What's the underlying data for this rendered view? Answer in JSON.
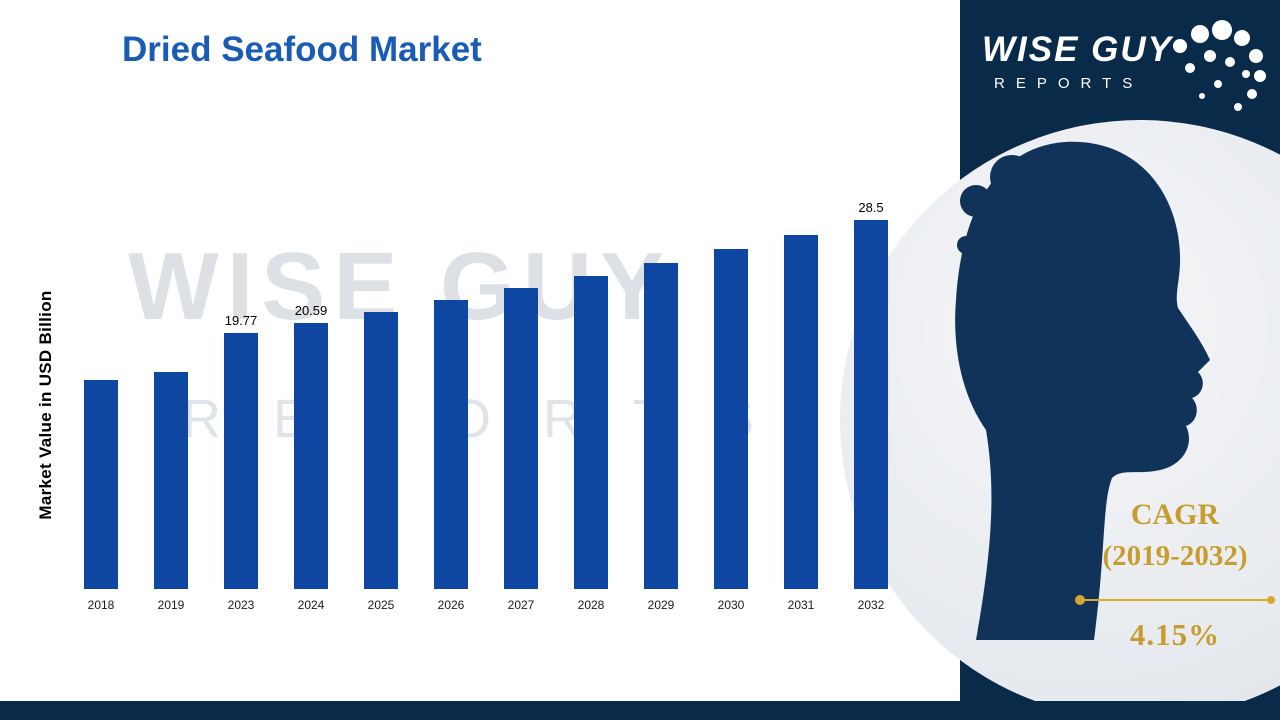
{
  "chart_data": {
    "type": "bar",
    "title": "Dried Seafood Market",
    "xlabel": "",
    "ylabel": "Market Value in USD Billion",
    "categories": [
      "2018",
      "2019",
      "2023",
      "2024",
      "2025",
      "2026",
      "2027",
      "2028",
      "2029",
      "2030",
      "2031",
      "2032"
    ],
    "values": [
      16.13,
      16.8,
      19.77,
      20.59,
      21.44,
      22.33,
      23.26,
      24.22,
      25.23,
      26.28,
      27.37,
      28.5
    ],
    "bar_labels": [
      "",
      "",
      "19.77",
      "20.59",
      "",
      "",
      "",
      "",
      "",
      "",
      "",
      "28.5"
    ],
    "ylim": [
      0,
      30
    ],
    "grid": false,
    "legend": false,
    "bar_color": "#0d47a1"
  },
  "brand": {
    "logo_line1": "WISE GUY",
    "logo_line2": "REPORTS",
    "panel_color": "#0a2a4a",
    "accent_gold": "#c79d2f",
    "title_blue": "#1a5cb5",
    "icons": {
      "brand_face": "face-profile-halftone-icon",
      "logo_face": "dotted-face-icon"
    }
  },
  "cagr": {
    "label": "CAGR",
    "range": "(2019-2032)",
    "value": "4.15%"
  },
  "watermark": {
    "line1": "WISE GUY",
    "line2": "REPORTS"
  }
}
